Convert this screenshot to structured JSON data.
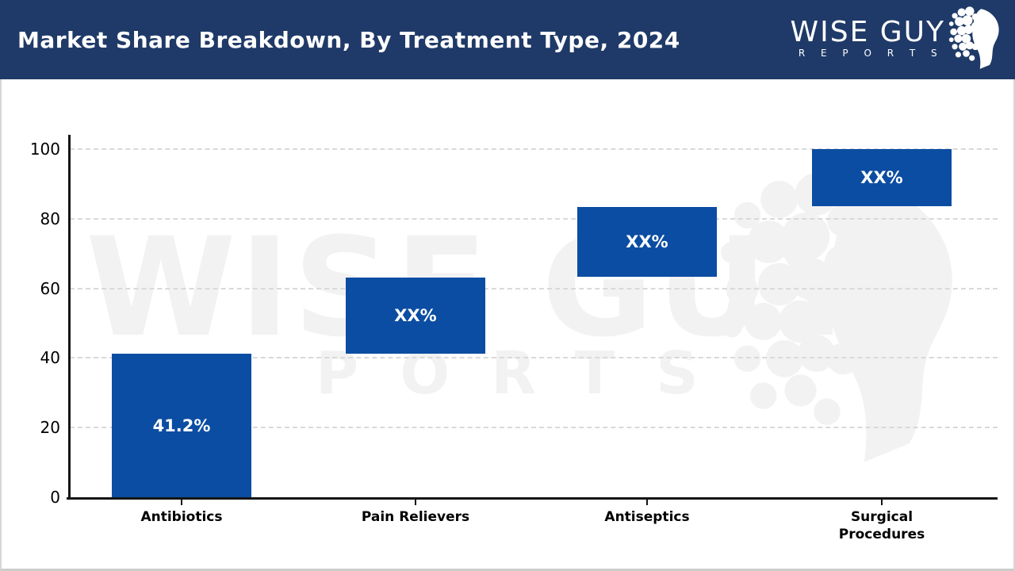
{
  "header": {
    "title": "Market Share Breakdown, By Treatment Type, 2024",
    "logo": {
      "name": "WISE GUY",
      "sub": "R E P O R T S"
    }
  },
  "watermark": {
    "big": "WISE GUY",
    "sub": "PORTS"
  },
  "colors": {
    "header_bg": "#1f3a68",
    "bar": "#0b4da2",
    "value_label": "#ffffff",
    "grid": "#d9d9d9",
    "axis": "#151515",
    "watermark": "#f2f2f2",
    "body_border": "#cccccc"
  },
  "chart_data": {
    "type": "bar",
    "subtype": "waterfall",
    "title": "Market Share Breakdown, By Treatment Type, 2024",
    "categories": [
      "Antibiotics",
      "Pain Relievers",
      "Antiseptics",
      "Surgical\nProcedures"
    ],
    "segments": [
      {
        "category": "Antibiotics",
        "start": 0,
        "end": 41.2,
        "label": "41.2%"
      },
      {
        "category": "Pain Relievers",
        "start": 41.2,
        "end": 63.2,
        "label": "XX%"
      },
      {
        "category": "Antiseptics",
        "start": 63.4,
        "end": 83.4,
        "label": "XX%"
      },
      {
        "category": "Surgical Procedures",
        "start": 83.7,
        "end": 100,
        "label": "XX%"
      }
    ],
    "xlabel": "",
    "ylabel": "",
    "ylim": [
      0,
      100
    ],
    "yticks": [
      0,
      20,
      40,
      60,
      80,
      100
    ],
    "grid": "horizontal dashed, y=20..100",
    "legend": "none",
    "bar_color": "#0b4da2",
    "value_label_color": "#ffffff"
  }
}
